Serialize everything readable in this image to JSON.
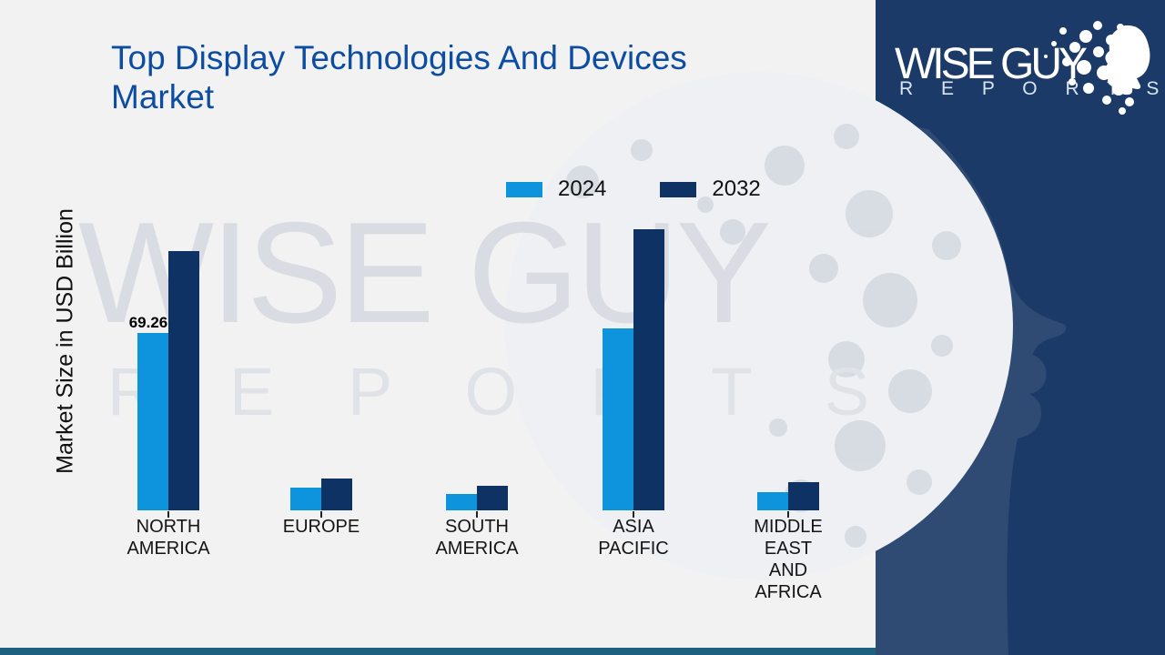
{
  "title": "Top Display Technologies And Devices Market",
  "y_axis_label": "Market Size in USD Billion",
  "legend": [
    {
      "label": "2024",
      "color": "#0d94dc"
    },
    {
      "label": "2032",
      "color": "#0e3263"
    }
  ],
  "chart_data": {
    "type": "bar",
    "title": "Top Display Technologies And Devices Market",
    "ylabel": "Market Size in USD Billion",
    "xlabel": "",
    "ylim": [
      0,
      115
    ],
    "grid": false,
    "legend_position": "top-center",
    "categories": [
      "North America",
      "Europe",
      "South America",
      "Asia Pacific",
      "Middle East and Africa"
    ],
    "category_display": [
      [
        "NORTH",
        "AMERICA"
      ],
      [
        "EUROPE"
      ],
      [
        "SOUTH",
        "AMERICA"
      ],
      [
        "ASIA",
        "PACIFIC"
      ],
      [
        "MIDDLE",
        "EAST",
        "AND",
        "AFRICA"
      ]
    ],
    "series": [
      {
        "name": "2024",
        "color": "#0d94dc",
        "values": [
          69.26,
          8.9,
          6.4,
          71.1,
          7.0
        ]
      },
      {
        "name": "2032",
        "color": "#0e3263",
        "values": [
          101.2,
          12.5,
          9.6,
          109.8,
          11.0
        ]
      }
    ],
    "bar_value_label": {
      "text": "69.26",
      "category_index": 0,
      "series_index": 0
    }
  },
  "watermark": {
    "line1": "WISE GUY",
    "line2": "R E P O R T S"
  },
  "logo": {
    "line1": "WISE GUY",
    "line2": "R E P O R T S"
  },
  "colors": {
    "background": "#f2f2f3",
    "title_blue": "#0d4da1",
    "panel_navy": "#1c3a68",
    "face_navy": "#2f4b74",
    "circle_light": "#eef0f3",
    "bubble_gray": "#d5dae1",
    "bottom_strip_teal": "#1e617f",
    "bar_2024": "#0d94dc",
    "bar_2032": "#0e3263"
  }
}
